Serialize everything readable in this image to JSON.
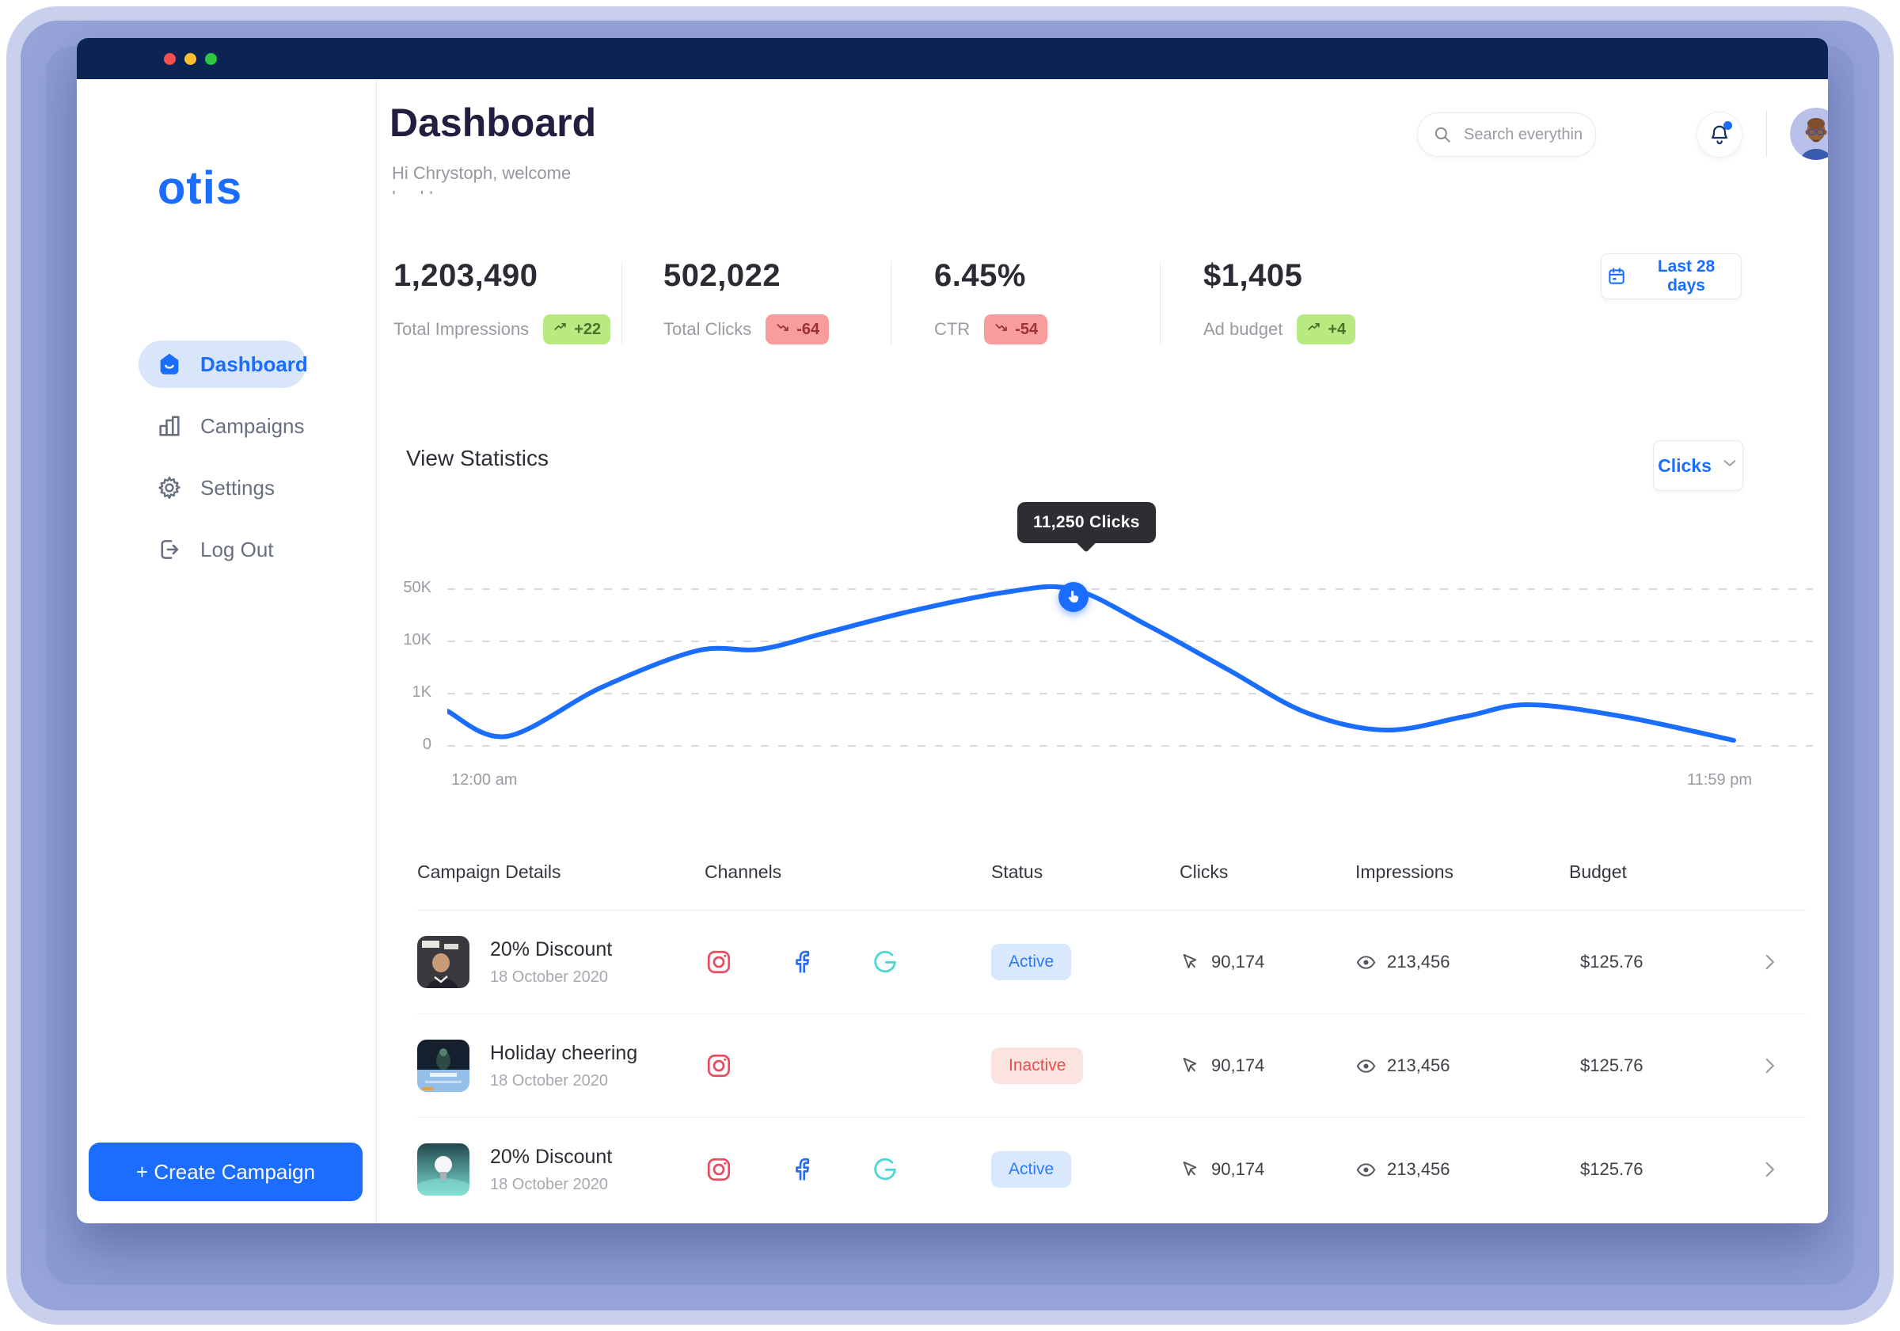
{
  "window": {
    "traffic_lights": [
      "close",
      "minimize",
      "zoom"
    ]
  },
  "brand": {
    "logo": "otis"
  },
  "sidebar": {
    "items": [
      {
        "label": "Dashboard",
        "icon": "home",
        "active": true
      },
      {
        "label": "Campaigns",
        "icon": "campaigns",
        "active": false
      },
      {
        "label": "Settings",
        "icon": "gear",
        "active": false
      },
      {
        "label": "Log Out",
        "icon": "logout",
        "active": false
      }
    ],
    "create_button": "+ Create Campaign"
  },
  "header": {
    "title": "Dashboard",
    "greeting_line1": "Hi Chrystoph, welcome",
    "greeting_line2": "back!",
    "search_placeholder": "Search everything",
    "notification_unread": true
  },
  "stats": [
    {
      "value": "1,203,490",
      "label": "Total Impressions",
      "delta": "+22",
      "direction": "up"
    },
    {
      "value": "502,022",
      "label": "Total Clicks",
      "delta": "-64",
      "direction": "down"
    },
    {
      "value": "6.45%",
      "label": "CTR",
      "delta": "-54",
      "direction": "down"
    },
    {
      "value": "$1,405",
      "label": "Ad budget",
      "delta": "+4",
      "direction": "up"
    }
  ],
  "date_range_button": "Last 28 days",
  "statistics": {
    "title": "View Statistics",
    "metric_select": "Clicks",
    "tooltip": "11,250 Clicks"
  },
  "chart_data": {
    "type": "line",
    "series_name": "Clicks",
    "title": "View Statistics",
    "y_ticks": [
      "50K",
      "10K",
      "1K",
      "0"
    ],
    "y_scale": "non-linear (0, 1K, 10K, 50K evenly spaced)",
    "x_start_label": "12:00 am",
    "x_end_label": "11:59 pm",
    "grid": "horizontal dashed lines at each y tick",
    "highlighted_point": {
      "label": "11,250 Clicks",
      "time_fraction": 0.49,
      "value": 11250
    },
    "approx_values_by_time_fraction": [
      {
        "x": 0.0,
        "clicks": 500
      },
      {
        "x": 0.05,
        "clicks": 120
      },
      {
        "x": 0.12,
        "clicks": 1100
      },
      {
        "x": 0.2,
        "clicks": 6500
      },
      {
        "x": 0.27,
        "clicks": 7000
      },
      {
        "x": 0.35,
        "clicks": 8500
      },
      {
        "x": 0.43,
        "clicks": 10500
      },
      {
        "x": 0.49,
        "clicks": 11250
      },
      {
        "x": 0.55,
        "clicks": 8000
      },
      {
        "x": 0.61,
        "clicks": 2500
      },
      {
        "x": 0.67,
        "clicks": 600
      },
      {
        "x": 0.73,
        "clicks": 250
      },
      {
        "x": 0.8,
        "clicks": 500
      },
      {
        "x": 0.84,
        "clicks": 700
      },
      {
        "x": 0.92,
        "clicks": 450
      },
      {
        "x": 1.0,
        "clicks": 150
      }
    ],
    "path_points_svg": [
      [
        0,
        250
      ],
      [
        75,
        282
      ],
      [
        195,
        220
      ],
      [
        315,
        174
      ],
      [
        395,
        172
      ],
      [
        475,
        152
      ],
      [
        585,
        124
      ],
      [
        705,
        100
      ],
      [
        790,
        96
      ],
      [
        885,
        142
      ],
      [
        985,
        197
      ],
      [
        1085,
        252
      ],
      [
        1185,
        274
      ],
      [
        1285,
        257
      ],
      [
        1365,
        242
      ],
      [
        1485,
        257
      ],
      [
        1625,
        287
      ]
    ],
    "grid_y_svg": [
      96,
      162,
      228,
      294
    ],
    "line_color": "#1a6dff"
  },
  "table": {
    "headers": [
      "Campaign Details",
      "Channels",
      "Status",
      "Clicks",
      "Impressions",
      "Budget"
    ],
    "rows": [
      {
        "title": "20% Discount",
        "date": "18 October 2020",
        "thumb": "photo-person",
        "channels": [
          "instagram",
          "facebook",
          "google"
        ],
        "status": "Active",
        "clicks": "90,174",
        "impressions": "213,456",
        "budget": "$125.76"
      },
      {
        "title": "Holiday cheering",
        "date": "18 October 2020",
        "thumb": "poster-dark",
        "channels": [
          "instagram"
        ],
        "status": "Inactive",
        "clicks": "90,174",
        "impressions": "213,456",
        "budget": "$125.76"
      },
      {
        "title": "20% Discount",
        "date": "18 October 2020",
        "thumb": "lightbulb",
        "channels": [
          "instagram",
          "facebook",
          "google"
        ],
        "status": "Active",
        "clicks": "90,174",
        "impressions": "213,456",
        "budget": "$125.76"
      }
    ]
  },
  "colors": {
    "accent_blue": "#1a6dff",
    "titlebar_navy": "#0c2454",
    "heading_dark": "#221e40",
    "badge_up_bg": "#b9ea82",
    "badge_down_bg": "#f79d9d",
    "status_active_bg": "#d9e8fd",
    "status_active_text": "#2e7cf6",
    "status_inactive_bg": "#fbe4e0",
    "status_inactive_text": "#e0514d",
    "instagram": "#e74b5f",
    "facebook": "#2d6ce8",
    "google": "#4cd7d2",
    "frame_periwinkle": "#95a3d8",
    "tooltip_bg": "#2e2d32"
  }
}
